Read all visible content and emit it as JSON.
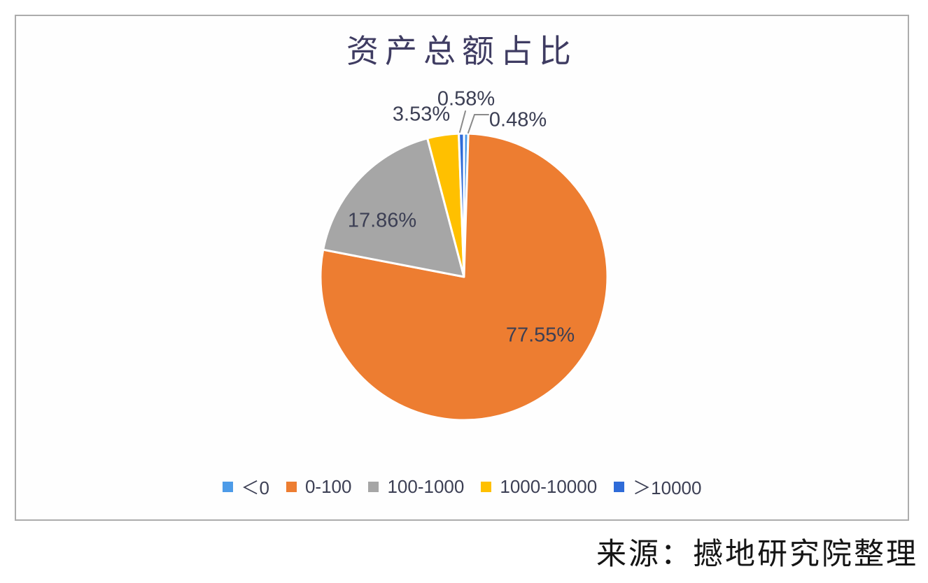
{
  "chart_data": {
    "type": "pie",
    "title": "资产总额占比",
    "slices": [
      {
        "category": "＜0",
        "value": 0.48,
        "label": "0.48%",
        "color": "#4d9be8"
      },
      {
        "category": "0-100",
        "value": 77.55,
        "label": "77.55%",
        "color": "#ed7d31"
      },
      {
        "category": "100-1000",
        "value": 17.86,
        "label": "17.86%",
        "color": "#a6a6a6"
      },
      {
        "category": "1000-10000",
        "value": 3.53,
        "label": "3.53%",
        "color": "#ffc000"
      },
      {
        "category": "＞10000",
        "value": 0.58,
        "label": "0.58%",
        "color": "#2f6bd8"
      }
    ],
    "start_angle_deg": -90,
    "direction": "clockwise",
    "legend_position": "bottom",
    "slice_border_color": "#ffffff",
    "leader_line_color": "#8a8a8a"
  },
  "source_note": "来源：撼地研究院整理"
}
